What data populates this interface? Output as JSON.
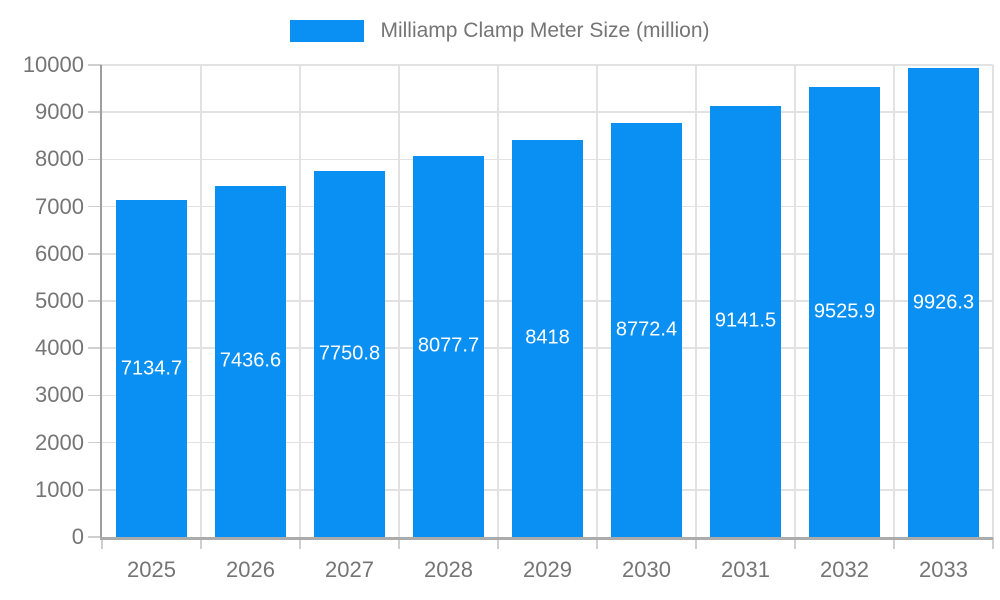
{
  "chart_data": {
    "type": "bar",
    "title": "Milliamp Clamp Meter Size (million)",
    "legend": {
      "label": "Milliamp Clamp Meter Size (million)",
      "position": "top-center"
    },
    "categories": [
      "2025",
      "2026",
      "2027",
      "2028",
      "2029",
      "2030",
      "2031",
      "2032",
      "2033"
    ],
    "series": [
      {
        "name": "Milliamp Clamp Meter Size (million)",
        "values": [
          7134.7,
          7436.6,
          7750.8,
          8077.7,
          8418,
          8772.4,
          9141.5,
          9525.9,
          9926.3
        ],
        "value_labels": [
          "7134.7",
          "7436.6",
          "7750.8",
          "8077.7",
          "8418",
          "8772.4",
          "9141.5",
          "9525.9",
          "9926.3"
        ]
      }
    ],
    "xlabel": "",
    "ylabel": "",
    "ylim": [
      0,
      10000
    ],
    "y_ticks": [
      0,
      1000,
      2000,
      3000,
      4000,
      5000,
      6000,
      7000,
      8000,
      9000,
      10000
    ],
    "y_tick_labels": [
      "0",
      "1000",
      "2000",
      "3000",
      "4000",
      "5000",
      "6000",
      "7000",
      "8000",
      "9000",
      "10000"
    ],
    "grid": true,
    "colors": {
      "bar": "#0a8ff2",
      "value_label": "#ffffff",
      "axis_label": "#757575",
      "title": "#757575",
      "grid_line": "#e2e2e2",
      "y_axis_line": "#9e9e9e",
      "x_axis_line": "#ababab",
      "tick": "#cfcfcf",
      "background": "#ffffff"
    }
  }
}
